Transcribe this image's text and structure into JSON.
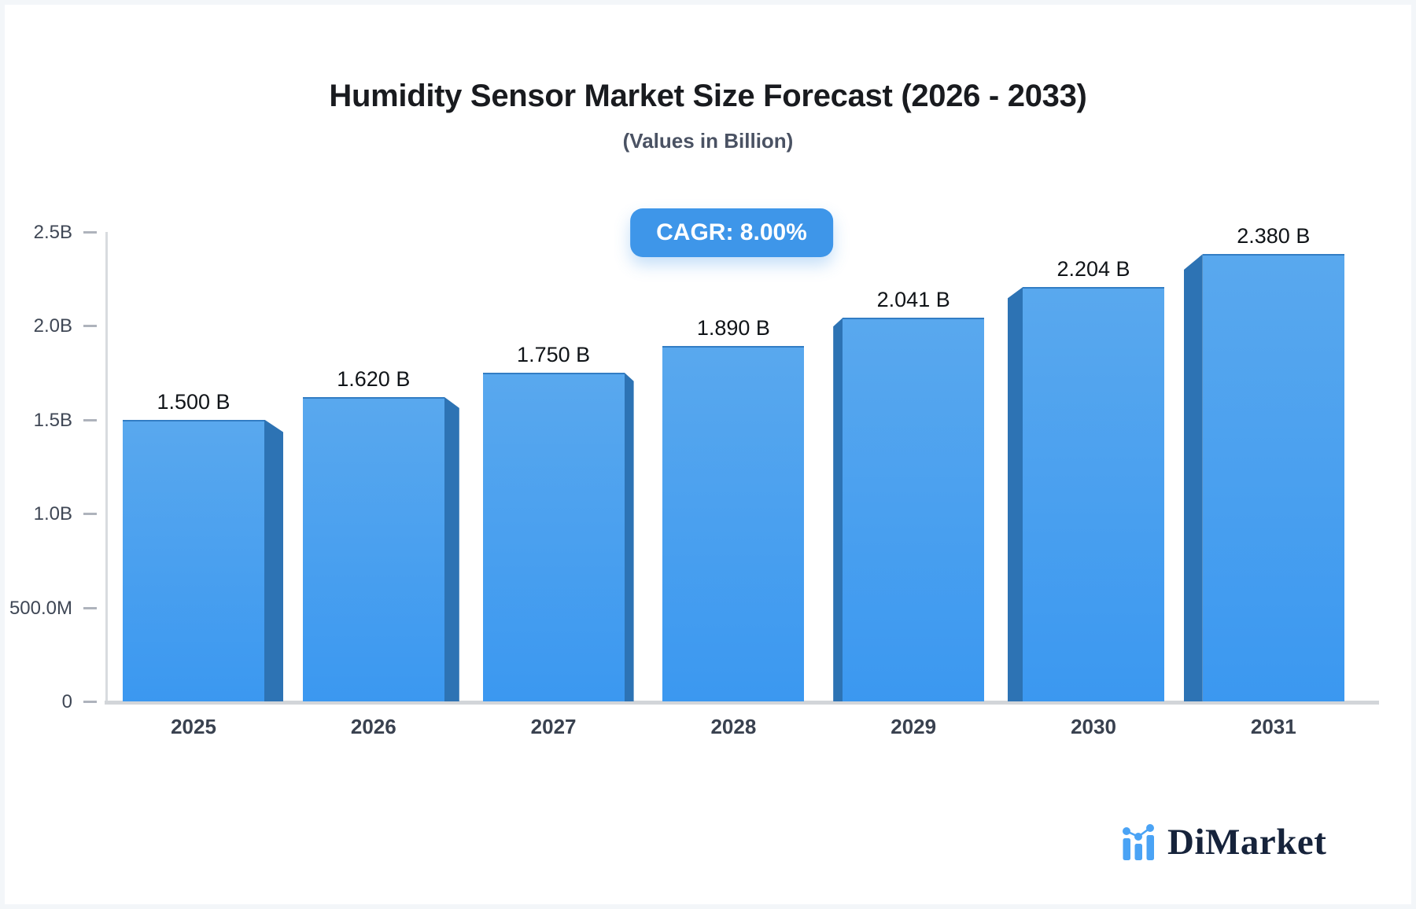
{
  "header": {
    "title": "Humidity Sensor Market Size Forecast (2026 - 2033)",
    "subtitle": "(Values in Billion)"
  },
  "badge": {
    "label": "CAGR: 8.00%"
  },
  "chart_data": {
    "type": "bar",
    "title": "Humidity Sensor Market Size Forecast (2026 - 2033)",
    "subtitle": "(Values in Billion)",
    "cagr_label": "CAGR: 8.00%",
    "categories": [
      "2025",
      "2026",
      "2027",
      "2028",
      "2029",
      "2030",
      "2031"
    ],
    "values": [
      1.5,
      1.62,
      1.75,
      1.89,
      2.041,
      2.204,
      2.38
    ],
    "value_labels": [
      "1.500 B",
      "1.620 B",
      "1.750 B",
      "1.890 B",
      "2.041 B",
      "2.204 B",
      "2.380 B"
    ],
    "unit": "Billion",
    "xlabel": "",
    "ylabel": "",
    "ylim": [
      0,
      2.5
    ],
    "y_ticks": [
      {
        "value": 2.5,
        "label": "2.5B"
      },
      {
        "value": 2.0,
        "label": "2.0B"
      },
      {
        "value": 1.5,
        "label": "1.5B"
      },
      {
        "value": 1.0,
        "label": "1.0B"
      },
      {
        "value": 0.5,
        "label": "500.0M"
      },
      {
        "value": 0.0,
        "label": "0"
      }
    ],
    "grid": false,
    "legend": false,
    "bar_style": "3d-beveled",
    "colors": {
      "bar_face_top": "#59a8ee",
      "bar_face_bottom": "#3b98f0",
      "bar_side": "#2d73b4",
      "axis_line": "#d8dbdf",
      "baseline": "#d2d5d9",
      "tick": "#aeb3bc",
      "tick_label": "#3f4755",
      "value_label": "#101418",
      "badge_bg": "#3e96e9",
      "badge_text": "#ffffff"
    }
  },
  "footer": {
    "brand": "DiMarket",
    "icon": "bar-chart-logo-icon",
    "brand_color": "#16233b",
    "icon_color": "#4aa3f5"
  }
}
